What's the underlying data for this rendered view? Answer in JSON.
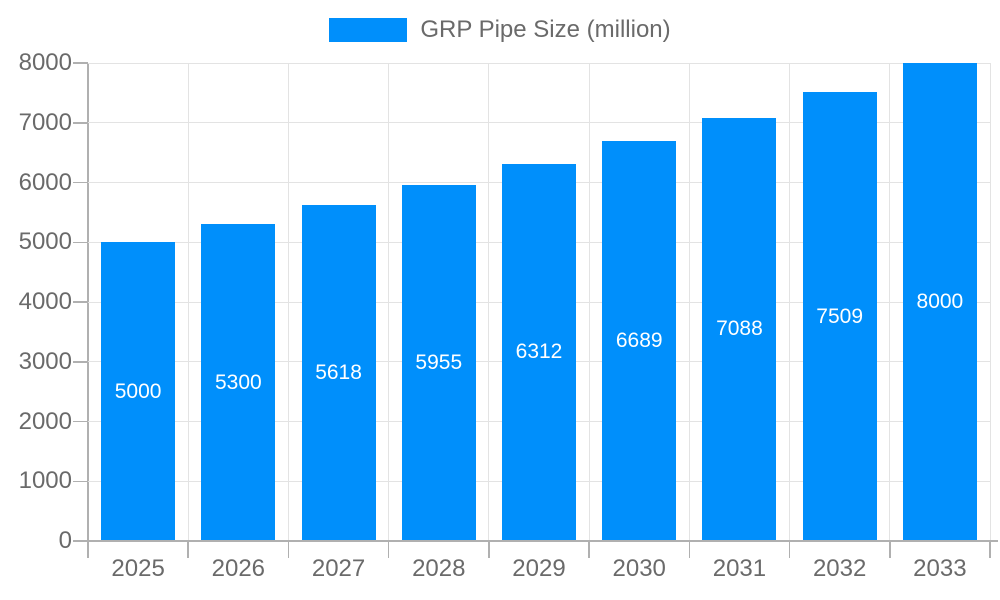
{
  "legend": {
    "label": "GRP Pipe Size (million)"
  },
  "colors": {
    "bar": "#008FFB",
    "bar_label": "#ffffff",
    "axis_text": "#6a6a6a",
    "grid_line": "#e3e3e3",
    "axis_line": "#b0b0b0",
    "background": "#ffffff"
  },
  "chart_data": {
    "type": "bar",
    "title": "GRP Pipe Size (million)",
    "categories": [
      "2025",
      "2026",
      "2027",
      "2028",
      "2029",
      "2030",
      "2031",
      "2032",
      "2033"
    ],
    "series": [
      {
        "name": "GRP Pipe Size (million)",
        "values": [
          5000,
          5300,
          5618,
          5955,
          6312,
          6689,
          7088,
          7509,
          8000
        ]
      }
    ],
    "xlabel": "",
    "ylabel": "",
    "ylim": [
      0,
      8000
    ],
    "yticks": [
      0,
      1000,
      2000,
      3000,
      4000,
      5000,
      6000,
      7000,
      8000
    ],
    "grid": true,
    "legend_position": "top-center",
    "data_labels": {
      "position": "inside-middle",
      "color": "#ffffff"
    }
  }
}
